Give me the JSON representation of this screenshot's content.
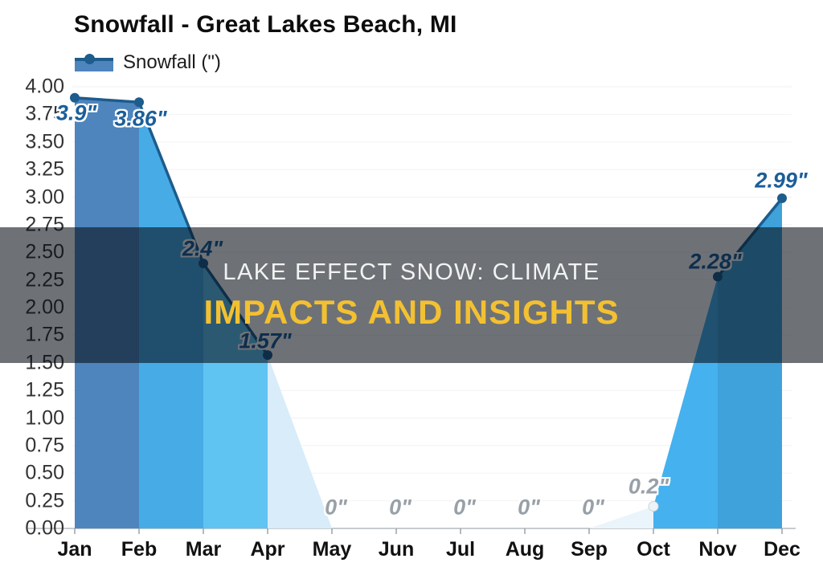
{
  "header": {
    "title": "Snowfall - Great Lakes Beach, MI"
  },
  "legend": {
    "label": "Snowfall (\")",
    "swatch_fill": "#4e85bd",
    "swatch_line_color": "#1d5c8c"
  },
  "banner": {
    "line1": "LAKE EFFECT SNOW: CLIMATE",
    "line2": "IMPACTS AND INSIGHTS",
    "line1_color": "#f2f2f2",
    "line2_color": "#f3c032",
    "overlay_color": "rgba(6,12,20,0.58)"
  },
  "chart_data": {
    "type": "area",
    "title": "Snowfall - Great Lakes Beach, MI",
    "series_name": "Snowfall (\")",
    "categories": [
      "Jan",
      "Feb",
      "Mar",
      "Apr",
      "May",
      "Jun",
      "Jul",
      "Aug",
      "Sep",
      "Oct",
      "Nov",
      "Dec"
    ],
    "values": [
      3.9,
      3.86,
      2.4,
      1.57,
      0,
      0,
      0,
      0,
      0,
      0.2,
      2.28,
      2.99
    ],
    "point_labels": [
      "3.9\"",
      "3.86\"",
      "2.4\"",
      "1.57\"",
      "0\"",
      "0\"",
      "0\"",
      "0\"",
      "0\"",
      "0.2\"",
      "2.28\"",
      "2.99\""
    ],
    "xlabel": "",
    "ylabel": "",
    "ylim": [
      0,
      4
    ],
    "ytick_step": 0.25,
    "yticks": [
      "4.00",
      "3.75",
      "3.50",
      "3.25",
      "3.00",
      "2.75",
      "2.50",
      "2.25",
      "2.00",
      "1.75",
      "1.50",
      "1.25",
      "1.00",
      "0.75",
      "0.50",
      "0.25",
      "0.00"
    ],
    "grid": "faint horizontal gridlines",
    "legend_position": "top-left",
    "line_color": "#1d5c8c",
    "band_colors": [
      "#4e85bd",
      "#47ace6",
      "#5fc4f2",
      "#d8ecf9",
      "none",
      "none",
      "none",
      "none",
      "#eaf4fb",
      "#45b1ee",
      "#3fa2da"
    ],
    "marker_dark_indices": [
      0,
      1,
      2,
      3,
      10,
      11
    ],
    "marker_light_indices": [
      9
    ],
    "stroke_segments": [
      [
        0,
        3
      ],
      [
        10,
        11
      ]
    ],
    "label_color_positive": "#1b5e99",
    "label_color_zero": "#98a0a8",
    "axis_color": "#b6babe"
  }
}
